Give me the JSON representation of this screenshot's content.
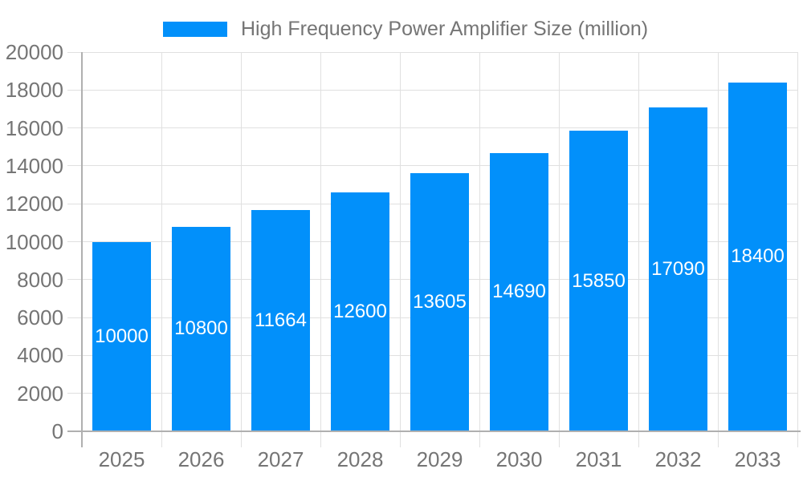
{
  "chart_data": {
    "type": "bar",
    "title": "High Frequency Power Amplifier Size (million)",
    "legend": {
      "label": "High Frequency Power Amplifier Size (million)",
      "position": "top"
    },
    "categories": [
      "2025",
      "2026",
      "2027",
      "2028",
      "2029",
      "2030",
      "2031",
      "2032",
      "2033"
    ],
    "values": [
      10000,
      10800,
      11664,
      12600,
      13605,
      14690,
      15850,
      17090,
      18400
    ],
    "xlabel": "",
    "ylabel": "",
    "ylim": [
      0,
      20000
    ],
    "ytick_step": 2000,
    "ytick_labels": [
      "0",
      "2000",
      "4000",
      "6000",
      "8000",
      "10000",
      "12000",
      "14000",
      "16000",
      "18000",
      "20000"
    ],
    "grid": true,
    "bar_labels_inside": true,
    "colors": {
      "bar": "#0290fa",
      "bar_value_label": "#ffffff",
      "axis_text": "#757575",
      "gridline": "#e0e0e0",
      "axis_line": "#b0b0b0",
      "background": "#ffffff"
    }
  }
}
